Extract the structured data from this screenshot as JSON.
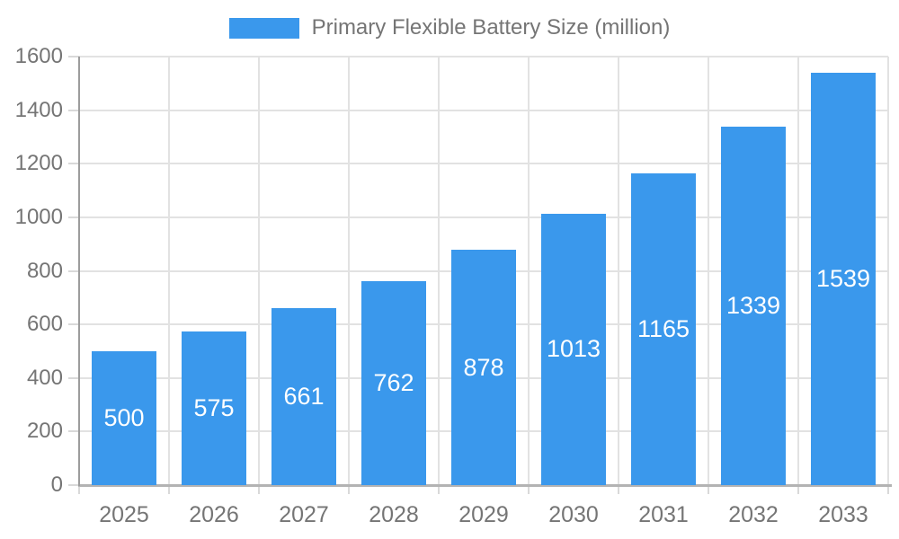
{
  "chart_data": {
    "type": "bar",
    "title": "Primary Flexible Battery Size (million)",
    "legend": [
      "Primary Flexible Battery Size (million)"
    ],
    "legend_position": "top-center",
    "categories": [
      "2025",
      "2026",
      "2027",
      "2028",
      "2029",
      "2030",
      "2031",
      "2032",
      "2033"
    ],
    "series": [
      {
        "name": "Primary Flexible Battery Size (million)",
        "values": [
          500,
          575,
          661,
          762,
          878,
          1013,
          1165,
          1339,
          1539
        ]
      }
    ],
    "data_labels": [
      "500",
      "575",
      "661",
      "762",
      "878",
      "1013",
      "1165",
      "1339",
      "1539"
    ],
    "xlabel": "",
    "ylabel": "",
    "ylim": [
      0,
      1600
    ],
    "ytick_step": 200,
    "yticks": [
      0,
      200,
      400,
      600,
      800,
      1000,
      1200,
      1400,
      1600
    ],
    "grid": true,
    "colors": {
      "bar": "#3a98ec",
      "bar_value_label": "#ffffff",
      "axis_text": "#757575",
      "grid_line": "#e2e2e2",
      "x_axis_line": "#b3b3b3",
      "y_axis_line": "#9c9c9c",
      "tick_line": "#d9d9d9",
      "background": "#ffffff"
    }
  }
}
